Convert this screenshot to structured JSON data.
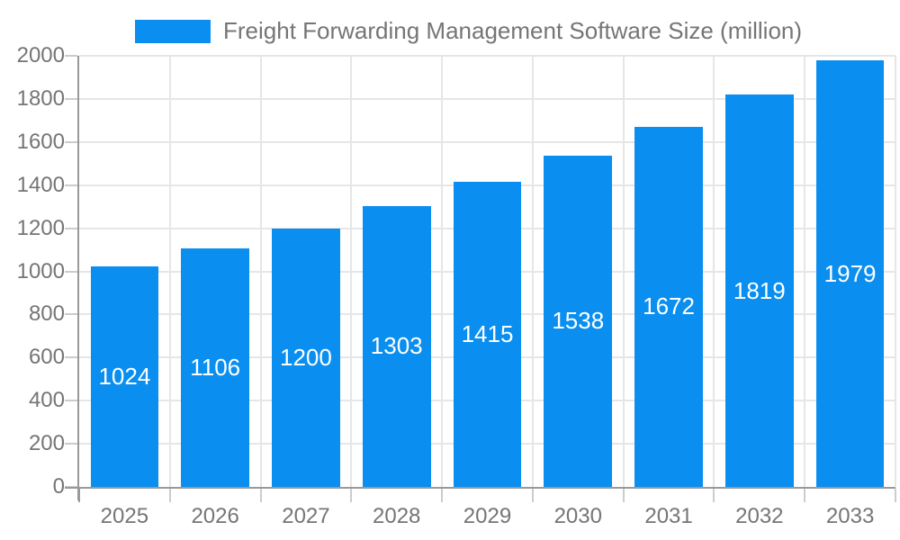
{
  "legend": {
    "label": "Freight Forwarding Management Software Size (million)"
  },
  "chart_data": {
    "type": "bar",
    "title": "Freight Forwarding Management Software Size (million)",
    "categories": [
      "2025",
      "2026",
      "2027",
      "2028",
      "2029",
      "2030",
      "2031",
      "2032",
      "2033"
    ],
    "values": [
      1024,
      1106,
      1200,
      1303,
      1415,
      1538,
      1672,
      1819,
      1979
    ],
    "xlabel": "",
    "ylabel": "",
    "ylim": [
      0,
      2000
    ],
    "ytick_step": 200,
    "ytick_labels": [
      "0",
      "200",
      "400",
      "600",
      "800",
      "1000",
      "1200",
      "1400",
      "1600",
      "1800",
      "2000"
    ],
    "grid": true,
    "legend_position": "top",
    "bar_labels_inside": true
  },
  "colors": {
    "bar": "#0a8ff0",
    "bar_label": "#ffffff",
    "axis_text": "#757575",
    "grid": "#e6e6e6",
    "axis_line": "#999999",
    "background": "#ffffff"
  }
}
